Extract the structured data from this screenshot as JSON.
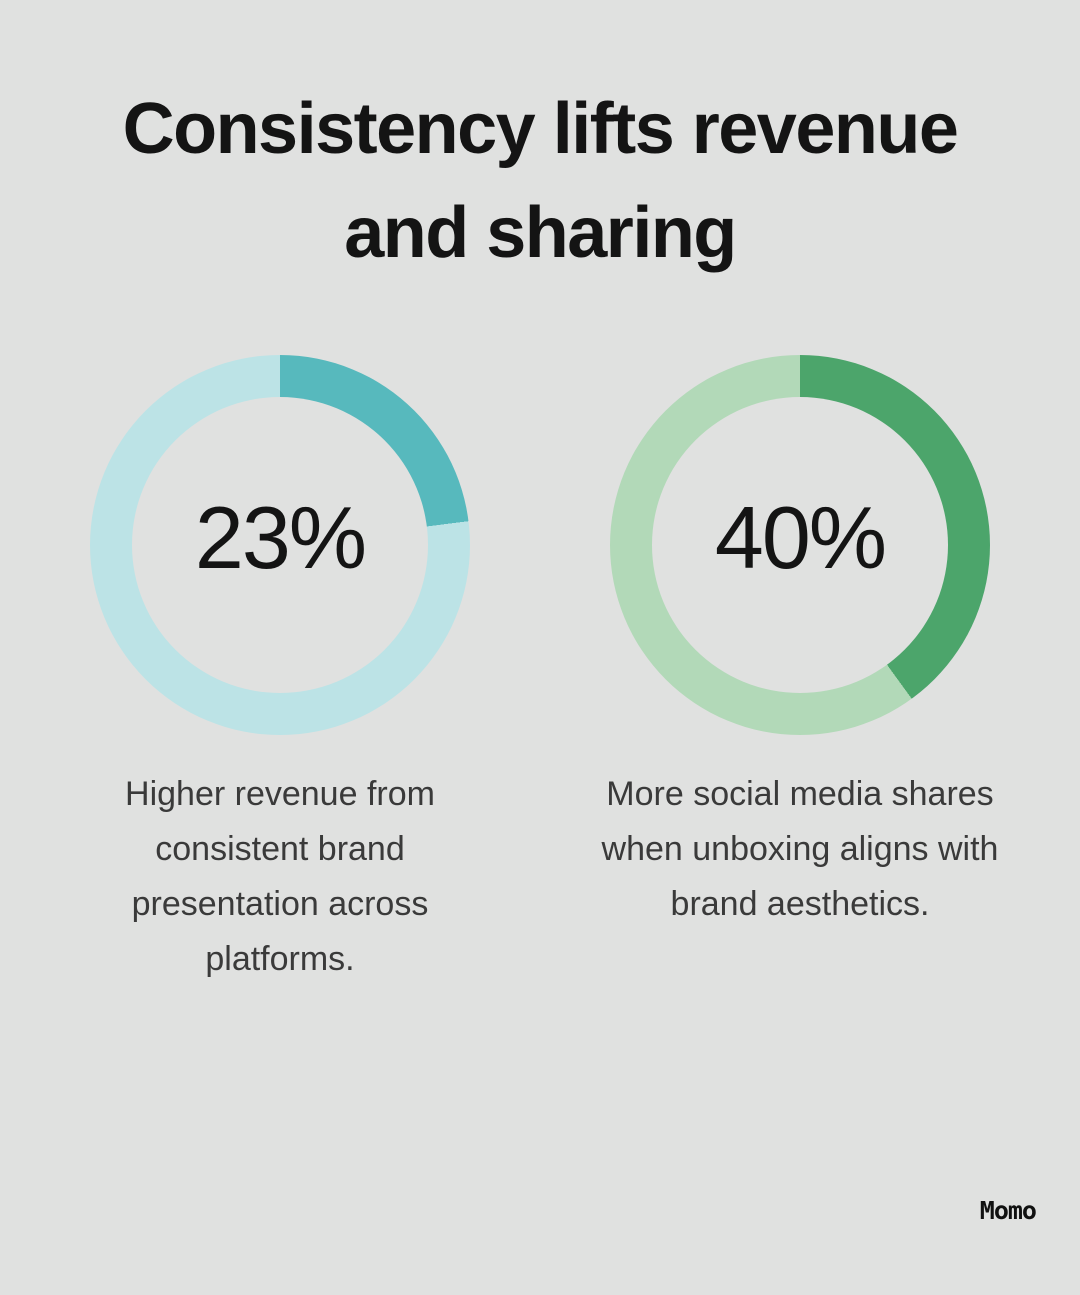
{
  "page": {
    "background_color": "#e0e1e0",
    "title_lines": [
      "Consistency lifts revenue",
      "and sharing"
    ],
    "title_full": "Consistency lifts revenue and sharing",
    "text_color": "#141414",
    "caption_color": "#3a3a3a",
    "brand": "Momo"
  },
  "chart_data": [
    {
      "type": "pie",
      "variant": "donut",
      "center_label": "23%",
      "values": [
        23,
        77
      ],
      "slice_labels": [
        "highlighted",
        "remainder"
      ],
      "colors": {
        "highlighted": "#57b9bd",
        "remainder": "#bce3e6"
      },
      "start_angle_deg": 0,
      "direction": "clockwise",
      "legend": "none",
      "caption": "Higher revenue from consistent brand presentation across platforms."
    },
    {
      "type": "pie",
      "variant": "donut",
      "center_label": "40%",
      "values": [
        40,
        60
      ],
      "slice_labels": [
        "highlighted",
        "remainder"
      ],
      "colors": {
        "highlighted": "#4ca56b",
        "remainder": "#b2d9b8"
      },
      "start_angle_deg": 0,
      "direction": "clockwise",
      "legend": "none",
      "caption": "More social media shares when unboxing aligns with brand aesthetics."
    }
  ]
}
